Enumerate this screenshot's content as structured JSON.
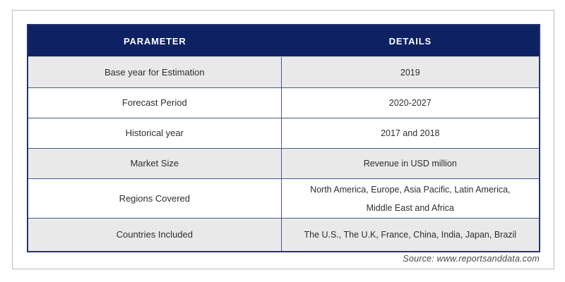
{
  "table": {
    "columns": [
      "PARAMETER",
      "DETAILS"
    ],
    "rows": [
      {
        "parameter": "Base year for Estimation",
        "details": "2019",
        "shade": "gray"
      },
      {
        "parameter": "Forecast Period",
        "details": "2020-2027",
        "shade": "white"
      },
      {
        "parameter": "Historical year",
        "details": "2017 and 2018",
        "shade": "white"
      },
      {
        "parameter": "Market Size",
        "details": "Revenue in USD million",
        "shade": "gray"
      },
      {
        "parameter": "Regions Covered",
        "details": "North America, Europe, Asia Pacific, Latin America,\nMiddle East and Africa",
        "shade": "white"
      },
      {
        "parameter": "Countries Included",
        "details": "The U.S., The  U.K, France, China, India, Japan, Brazil",
        "shade": "gray"
      }
    ]
  },
  "source": {
    "label": "Source: www.reportsanddata.com"
  },
  "colors": {
    "header_bg": "#0d2163",
    "row_gray": "#e9e9e9",
    "row_white": "#ffffff",
    "table_border": "#25356e",
    "inner_border": "#4a5886",
    "frame_border": "#bdbdbd",
    "text": "#2e2e2e",
    "header_text": "#ffffff",
    "source_text": "#4a4a4a"
  }
}
